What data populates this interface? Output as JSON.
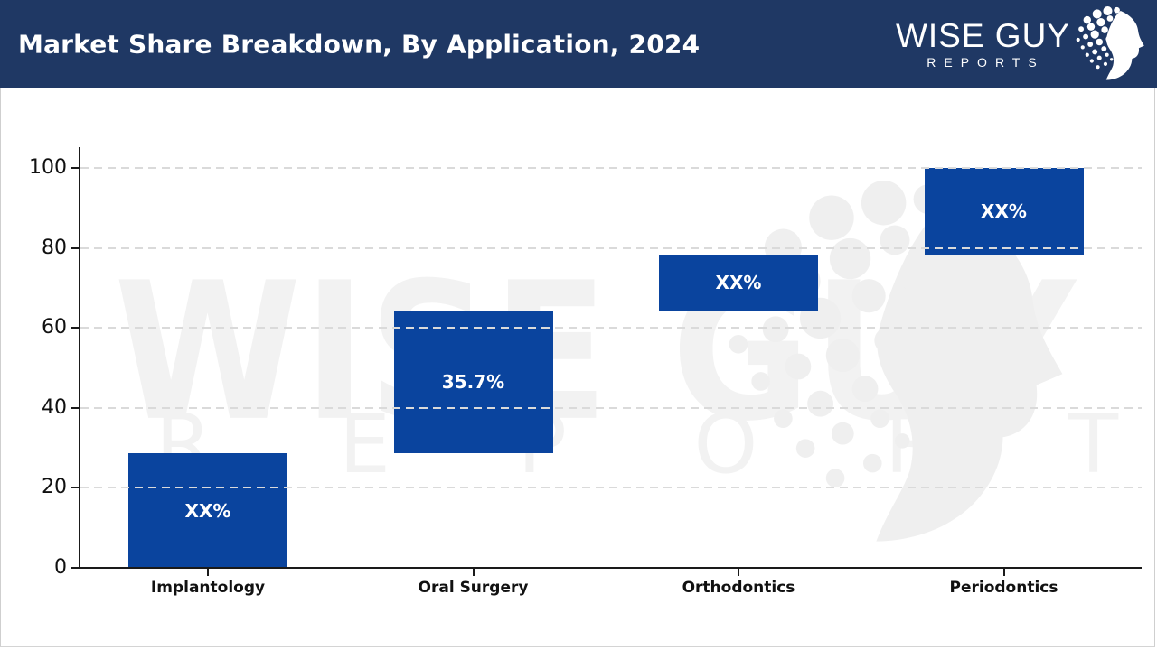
{
  "header": {
    "title": "Market Share Breakdown, By Application, 2024",
    "logo": {
      "line1": "WISE GUY",
      "line2": "REPORTS",
      "icon": "dotted-head-profile"
    }
  },
  "watermark": {
    "line1": "WISE GUY",
    "line2": "R E P O R T S",
    "icon": "dotted-head-profile"
  },
  "colors": {
    "header_bg": "#1f3864",
    "bar_fill": "#0a449e",
    "bar_label": "#ffffff",
    "axis": "#1a1a1a",
    "gridline": "#dadada",
    "watermark": "#f2f2f2",
    "panel_border": "#cfcfcf"
  },
  "chart_data": {
    "type": "bar",
    "subtype": "floating-waterfall",
    "title": "Market Share Breakdown, By Application, 2024",
    "categories": [
      "Implantology",
      "Oral Surgery",
      "Orthodontics",
      "Periodontics"
    ],
    "segments": [
      {
        "category": "Implantology",
        "start": 0,
        "end": 28.6,
        "label": "XX%"
      },
      {
        "category": "Oral Surgery",
        "start": 28.6,
        "end": 64.3,
        "label": "35.7%"
      },
      {
        "category": "Orthodontics",
        "start": 64.3,
        "end": 78.4,
        "label": "XX%"
      },
      {
        "category": "Periodontics",
        "start": 78.4,
        "end": 100,
        "label": "XX%"
      }
    ],
    "yticks": [
      0,
      20,
      40,
      60,
      80,
      100
    ],
    "ylim": [
      0,
      105
    ],
    "xlabel": "",
    "ylabel": "",
    "grid": "horizontal-dashed-over-bars",
    "legend": null
  }
}
